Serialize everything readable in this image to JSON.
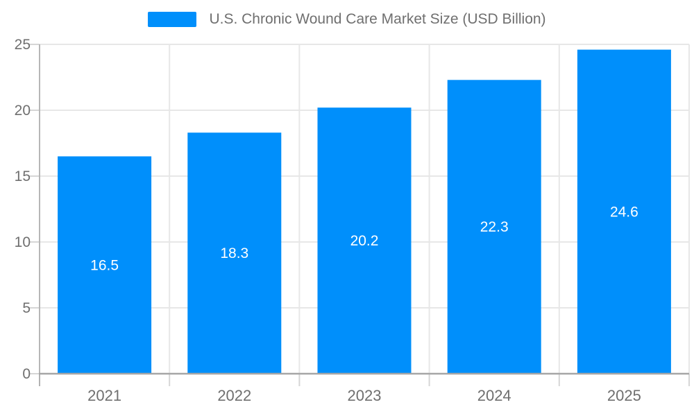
{
  "legend": {
    "label": "U.S. Chronic Wound Care Market Size (USD Billion)"
  },
  "chart_data": {
    "type": "bar",
    "title": "U.S. Chronic Wound Care Market Size (USD Billion)",
    "categories": [
      "2021",
      "2022",
      "2023",
      "2024",
      "2025"
    ],
    "series": [
      {
        "name": "U.S. Chronic Wound Care Market Size (USD Billion)",
        "values": [
          16.5,
          18.3,
          20.2,
          22.3,
          24.6
        ]
      }
    ],
    "data_labels": [
      "16.5",
      "18.3",
      "20.2",
      "22.3",
      "24.6"
    ],
    "y_ticks": [
      0,
      5,
      10,
      15,
      20,
      25
    ],
    "y_tick_labels": [
      "0",
      "5",
      "10",
      "15",
      "20",
      "25"
    ],
    "ylim": [
      0,
      25
    ],
    "xlabel": "",
    "ylabel": "",
    "grid": true,
    "legend_position": "top",
    "colors": {
      "bar": "#008FFB",
      "bar_label_text": "#ffffff",
      "axis_text": "#6f6f6f",
      "gridline": "#e7e7e7",
      "tick": "#d6d6d6",
      "axis_line": "#a6a6a6"
    }
  }
}
